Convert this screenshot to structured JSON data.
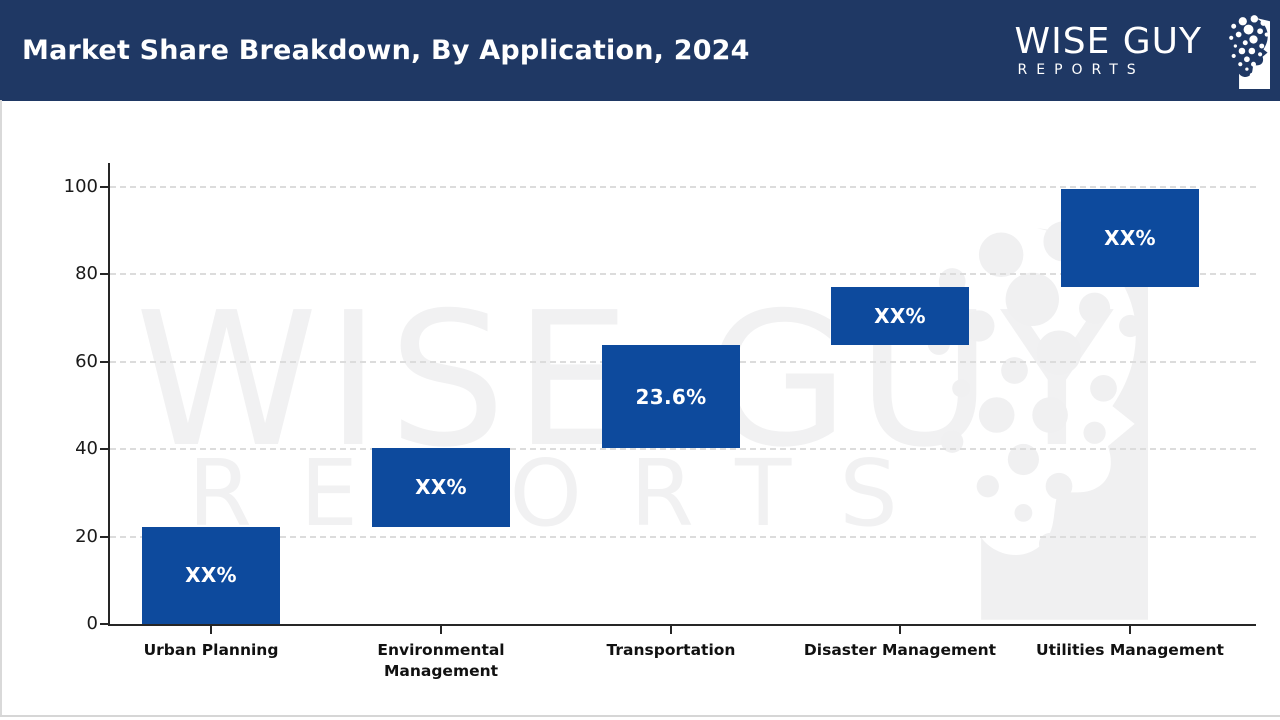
{
  "header": {
    "title": "Market Share Breakdown, By Application, 2024",
    "bg_color": "#1f3864",
    "brand": {
      "name_top": "WISE GUY",
      "name_bottom": "REPORTS"
    }
  },
  "watermark": {
    "text_top": "WISE GUY",
    "text_bottom": "REPORTS"
  },
  "chart_data": {
    "type": "bar",
    "variant": "floating-waterfall",
    "title": "Market Share Breakdown, By Application, 2024",
    "xlabel": "",
    "ylabel": "",
    "ylim": [
      0,
      105
    ],
    "yticks": [
      0,
      20,
      40,
      60,
      80,
      100
    ],
    "grid": "horizontal-dashed",
    "legend": "none",
    "bar_color": "#0d4a9d",
    "value_label_color": "#ffffff",
    "categories": [
      "Urban Planning",
      "Environmental Management",
      "Transportation",
      "Disaster Management",
      "Utilities Management"
    ],
    "segments": [
      {
        "category": "Urban Planning",
        "start": 0,
        "end": 22.3,
        "value_label": "XX%"
      },
      {
        "category": "Environmental Management",
        "start": 22.3,
        "end": 40.2,
        "value_label": "XX%"
      },
      {
        "category": "Transportation",
        "start": 40.2,
        "end": 63.8,
        "value_label": "23.6%"
      },
      {
        "category": "Disaster Management",
        "start": 63.8,
        "end": 77.2,
        "value_label": "XX%"
      },
      {
        "category": "Utilities Management",
        "start": 77.2,
        "end": 99.5,
        "value_label": "XX%"
      }
    ]
  }
}
